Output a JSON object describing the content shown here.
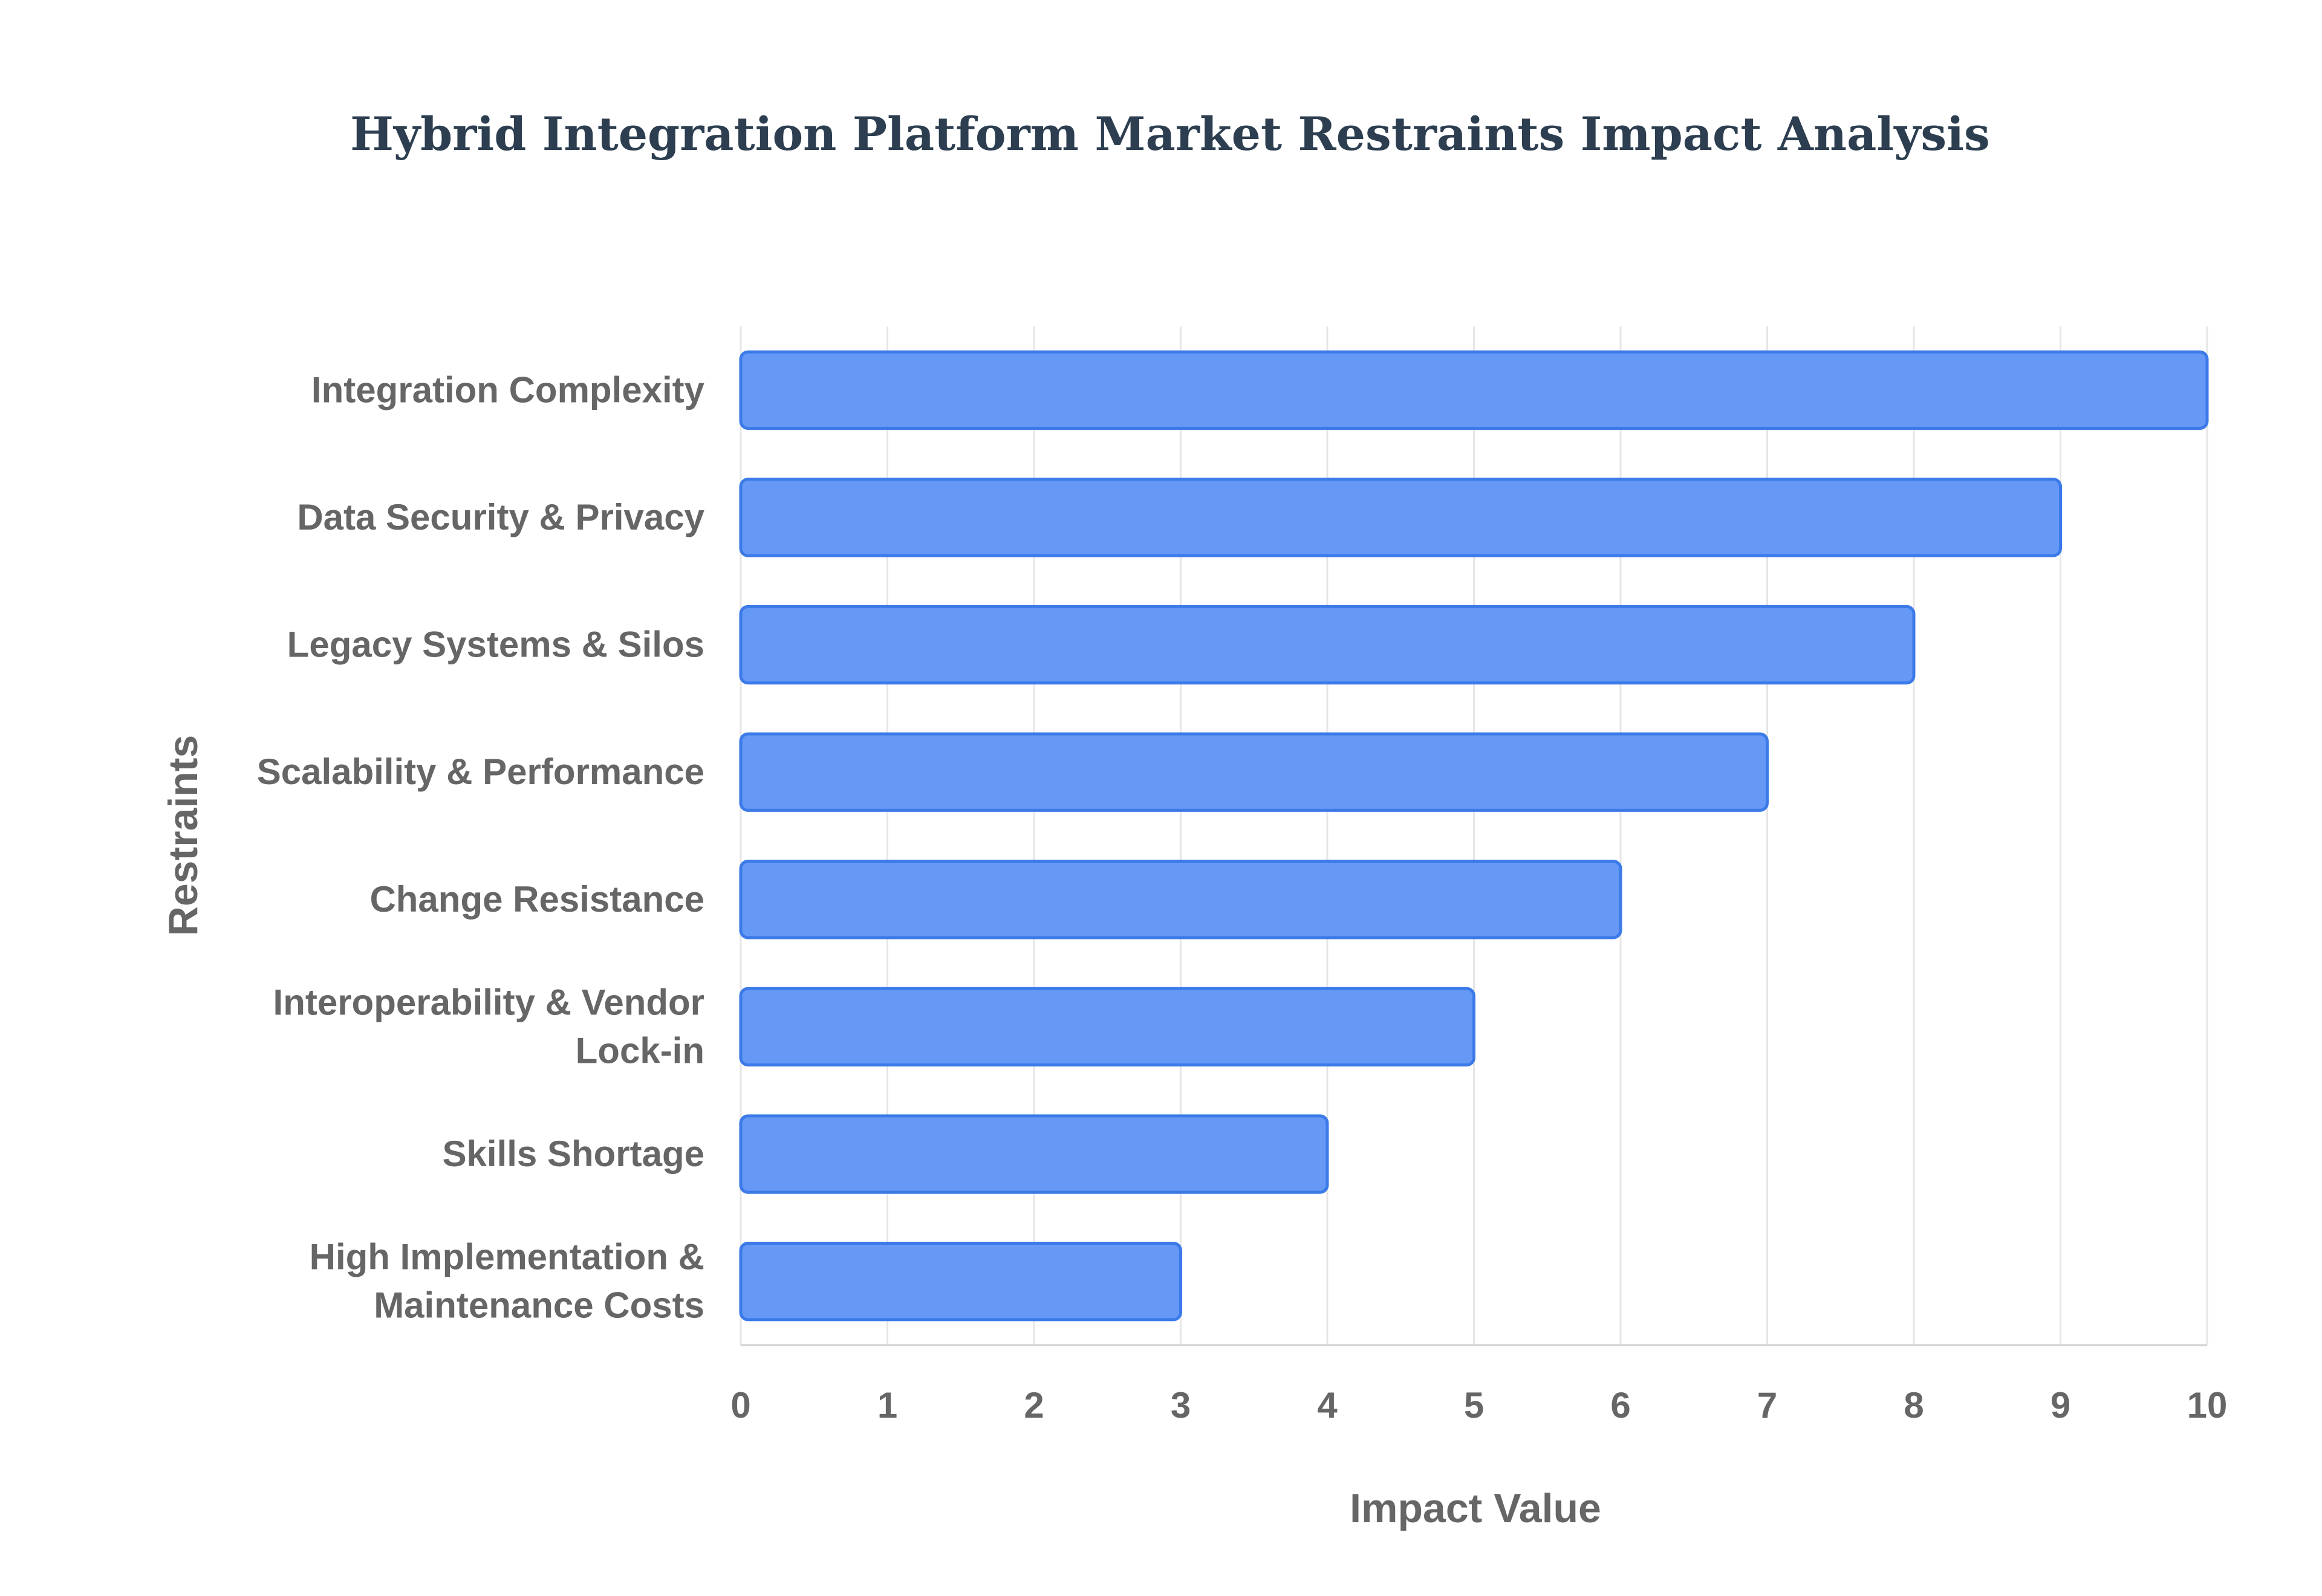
{
  "chart_data": {
    "type": "bar",
    "orientation": "horizontal",
    "title": "Hybrid Integration Platform Market Restraints Impact Analysis",
    "xlabel": "Impact Value",
    "ylabel": "Restraints",
    "xlim": [
      0,
      10
    ],
    "x_ticks": [
      "0",
      "1",
      "2",
      "3",
      "4",
      "5",
      "6",
      "7",
      "8",
      "9",
      "10"
    ],
    "grid": true,
    "legend": "none",
    "categories": [
      [
        "Integration Complexity"
      ],
      [
        "Data Security & Privacy"
      ],
      [
        "Legacy Systems & Silos"
      ],
      [
        "Scalability & Performance"
      ],
      [
        "Change Resistance"
      ],
      [
        "Interoperability & Vendor",
        "Lock-in"
      ],
      [
        "Skills Shortage"
      ],
      [
        "High Implementation &",
        "Maintenance Costs"
      ]
    ],
    "values": [
      10,
      9,
      8,
      7,
      6,
      5,
      4,
      3
    ],
    "colors": {
      "bar_fill": "#6699f5",
      "bar_stroke": "#3b7ae8"
    }
  }
}
